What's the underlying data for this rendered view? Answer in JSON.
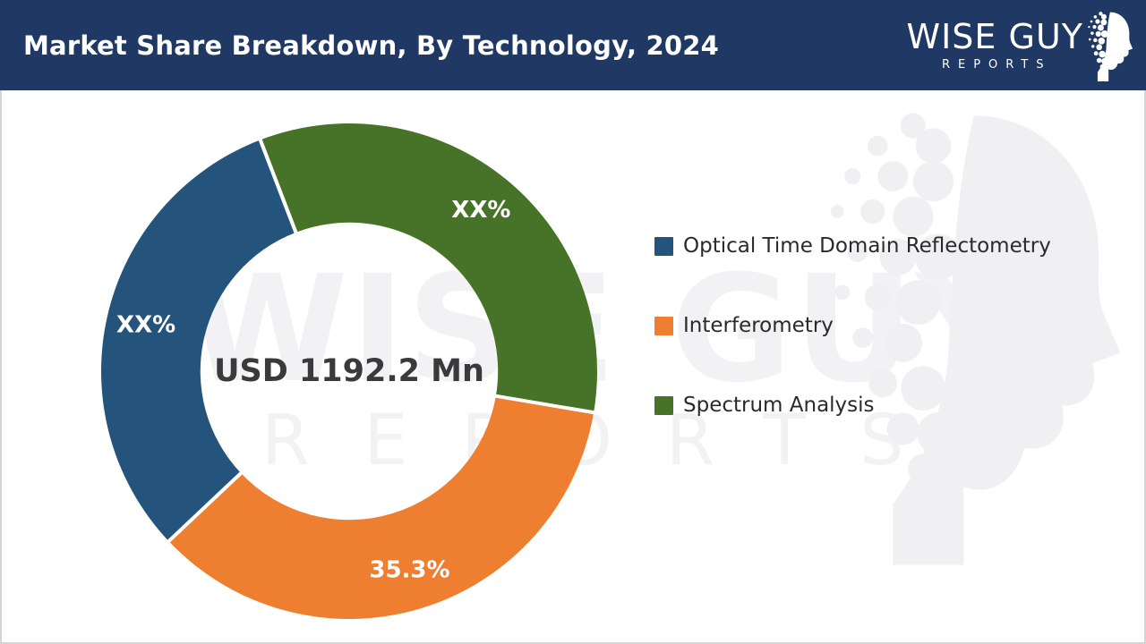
{
  "header": {
    "title": "Market Share Breakdown, By Technology, 2024",
    "background_color": "#1F3864",
    "logo": {
      "line1": "WISE GUY",
      "line2": "REPORTS"
    }
  },
  "watermark": {
    "line1": "WISE GUY",
    "line2": "REPORTS"
  },
  "chart_data": {
    "type": "pie",
    "subtype": "donut",
    "title": "Market Share Breakdown, By Technology, 2024",
    "center_label": "USD 1192.2 Mn",
    "start_angle_deg": 111,
    "direction": "counterclockwise",
    "inner_radius_ratio": 0.6,
    "legend_position": "right",
    "slices": [
      {
        "label": "Optical Time Domain Reflectometry",
        "value_pct": 31.2,
        "display_pct": "XX%",
        "color": "#24547C"
      },
      {
        "label": "Interferometry",
        "value_pct": 35.3,
        "display_pct": "35.3%",
        "color": "#EE7E30"
      },
      {
        "label": "Spectrum Analysis",
        "value_pct": 33.5,
        "display_pct": "XX%",
        "color": "#477329"
      }
    ]
  }
}
